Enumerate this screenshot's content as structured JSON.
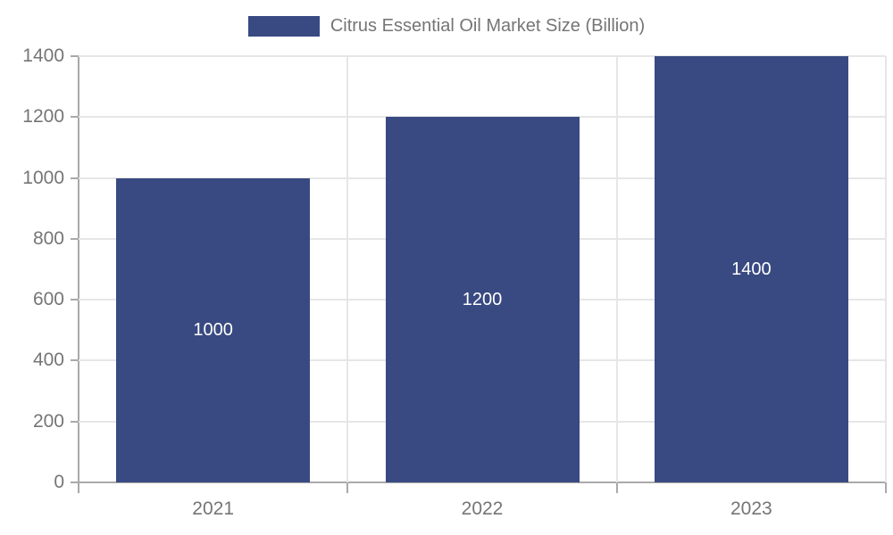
{
  "legend": {
    "label": "Citrus Essential Oil Market Size (Billion)"
  },
  "colors": {
    "bar": "#394a82",
    "legend_text": "#757575",
    "tick_label": "#757575",
    "axis_line": "#a9a9a9",
    "gridline": "#e6e6e6",
    "bar_label": "#ffffff",
    "background": "#ffffff"
  },
  "chart_data": {
    "type": "bar",
    "title": "",
    "xlabel": "",
    "ylabel": "",
    "categories": [
      "2021",
      "2022",
      "2023"
    ],
    "values": [
      1000,
      1200,
      1400
    ],
    "series": [
      {
        "name": "Citrus Essential Oil Market Size (Billion)",
        "values": [
          1000,
          1200,
          1400
        ]
      }
    ],
    "bar_labels": [
      "1000",
      "1200",
      "1400"
    ],
    "ylim": [
      0,
      1400
    ],
    "yticks": [
      0,
      200,
      400,
      600,
      800,
      1000,
      1200,
      1400
    ],
    "grid": true,
    "legend_position": "top"
  }
}
